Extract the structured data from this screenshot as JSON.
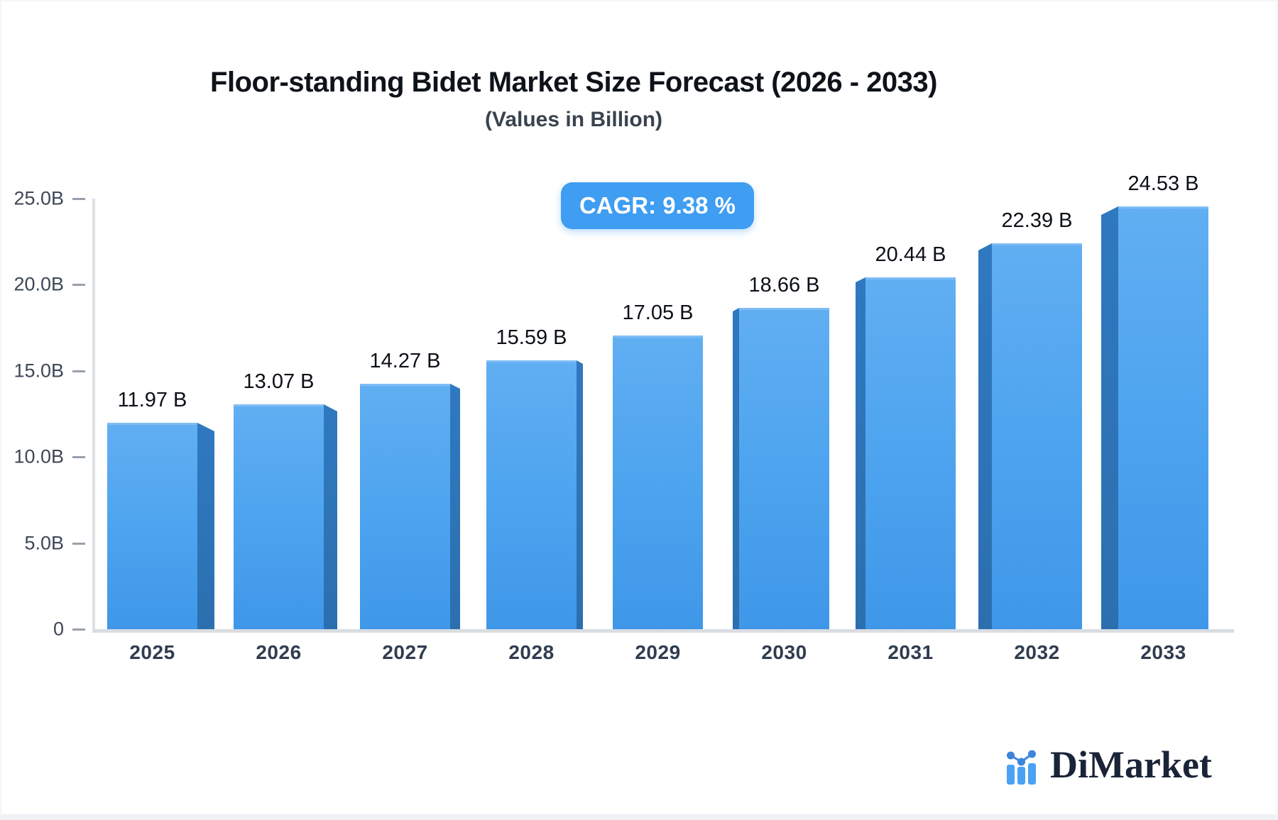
{
  "header": {
    "title": "Floor-standing Bidet Market Size Forecast (2026 - 2033)",
    "subtitle": "(Values in Billion)",
    "cagr_badge": "CAGR: 9.38 %"
  },
  "chart_data": {
    "type": "bar",
    "title": "Floor-standing Bidet Market Size Forecast (2026 - 2033)",
    "subtitle": "(Values in Billion)",
    "annotation": "CAGR: 9.38 %",
    "categories": [
      "2025",
      "2026",
      "2027",
      "2028",
      "2029",
      "2030",
      "2031",
      "2032",
      "2033"
    ],
    "values": [
      11.97,
      13.07,
      14.27,
      15.59,
      17.05,
      18.66,
      20.44,
      22.39,
      24.53
    ],
    "bar_labels": [
      "11.97 B",
      "13.07 B",
      "14.27 B",
      "15.59 B",
      "17.05 B",
      "18.66 B",
      "20.44 B",
      "22.39 B",
      "24.53 B"
    ],
    "unit": "Billion",
    "xlabel": "",
    "ylabel": "",
    "ylim": [
      0,
      25
    ],
    "yticks": [
      {
        "value": 25,
        "label": "25.0B"
      },
      {
        "value": 20,
        "label": "20.0B"
      },
      {
        "value": 15,
        "label": "15.0B"
      },
      {
        "value": 10,
        "label": "10.0B"
      },
      {
        "value": 5,
        "label": "5.0B"
      },
      {
        "value": 0,
        "label": "0"
      }
    ],
    "grid": false,
    "legend": false,
    "style": "pseudo-3d bars with center vanishing point",
    "colors": {
      "bar_face_top": "#61aef2",
      "bar_face_bottom": "#3f97e9",
      "bar_top_highlight": "#7fbdf6",
      "bar_side_shade": "#2e75b8",
      "badge_background": "#3f9df2",
      "badge_text": "#ffffff",
      "axis_line": "#dde1e6",
      "tick_text": "#3e4756",
      "category_text": "#303c4f",
      "value_text": "#0c1017",
      "title_text": "#0e1219"
    }
  },
  "footer": {
    "brand": "DiMarket",
    "logo_icon": "bar-line-chart-icon",
    "brand_color": "#1a2438",
    "icon_bar_color": "#4aa2f5",
    "icon_dot_color": "#3c85db"
  }
}
